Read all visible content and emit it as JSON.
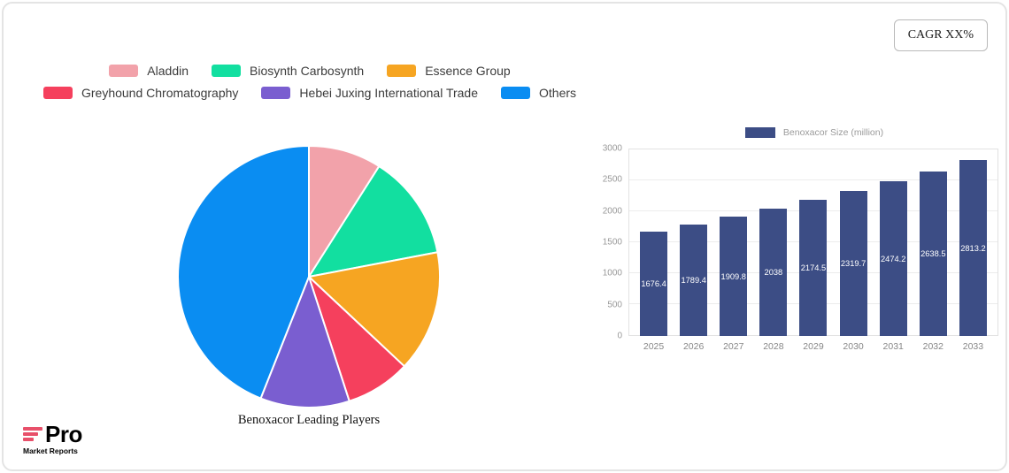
{
  "header": {
    "cagr_label": "CAGR XX%"
  },
  "logo": {
    "brand": "Pro",
    "subtitle": "Market Reports",
    "accent_color": "#e8506a"
  },
  "chart_data": [
    {
      "type": "pie",
      "title": "Benoxacor Leading Players",
      "legend_position": "top",
      "labels": [
        "Aladdin",
        "Biosynth Carbosynth",
        "Essence Group",
        "Greyhound Chromatography",
        "Hebei Juxing International Trade",
        "Others"
      ],
      "values": [
        9,
        13,
        15,
        8,
        11,
        44
      ],
      "colors": [
        "#f2a2aa",
        "#12dfa0",
        "#f6a522",
        "#f5405d",
        "#7a5ed0",
        "#0a8df2"
      ]
    },
    {
      "type": "bar",
      "legend_label": "Benoxacor Size (million)",
      "bar_color": "#3c4d85",
      "categories": [
        "2025",
        "2026",
        "2027",
        "2028",
        "2029",
        "2030",
        "2031",
        "2032",
        "2033"
      ],
      "values": [
        1676.4,
        1789.4,
        1909.8,
        2038,
        2174.5,
        2319.7,
        2474.2,
        2638.5,
        2813.2
      ],
      "value_labels": [
        "1676.4",
        "1789.4",
        "1909.8",
        "2038",
        "2174.5",
        "2319.7",
        "2474.2",
        "2638.5",
        "2813.2"
      ],
      "ylim": [
        0,
        3000
      ],
      "yticks": [
        0,
        500,
        1000,
        1500,
        2000,
        2500,
        3000
      ],
      "grid": true,
      "xlabel": "",
      "ylabel": ""
    }
  ]
}
